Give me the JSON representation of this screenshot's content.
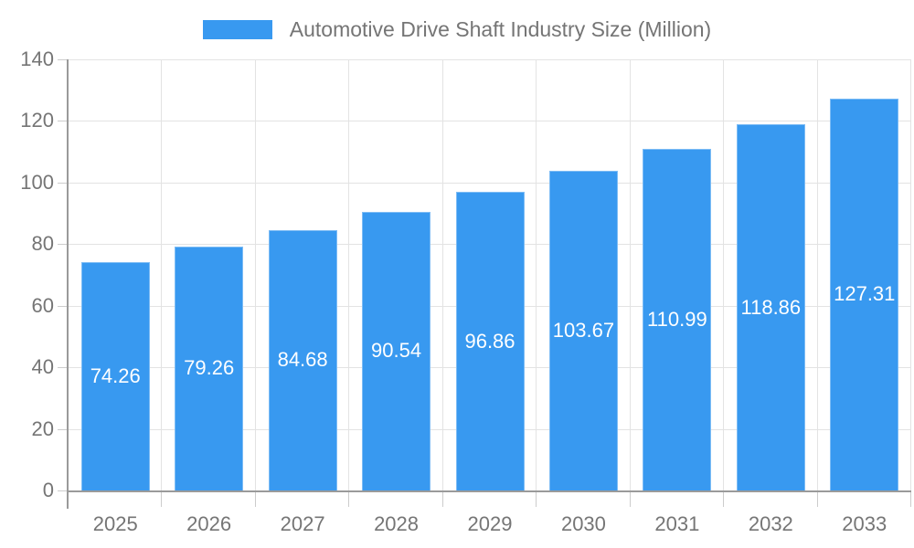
{
  "chart_data": {
    "type": "bar",
    "title": "Automotive Drive Shaft Industry Size (Million)",
    "categories": [
      "2025",
      "2026",
      "2027",
      "2028",
      "2029",
      "2030",
      "2031",
      "2032",
      "2033"
    ],
    "values": [
      74.26,
      79.26,
      84.68,
      90.54,
      96.86,
      103.67,
      110.99,
      118.86,
      127.31
    ],
    "bar_labels": [
      "74.26",
      "79.26",
      "84.68",
      "90.54",
      "96.86",
      "103.67",
      "110.99",
      "118.86",
      "127.31"
    ],
    "xlabel": "",
    "ylabel": "",
    "ylim": [
      0,
      140
    ],
    "ytick_step": 20,
    "yticks": [
      0,
      20,
      40,
      60,
      80,
      100,
      120,
      140
    ],
    "grid": true,
    "legend_position": "top",
    "legend_entries": [
      "Automotive Drive Shaft Industry Size (Million)"
    ]
  },
  "colors": {
    "bar": "#3899F0",
    "bar_label": "#FFFFFF",
    "text": "#757575",
    "grid": "#E3E3E3",
    "tick": "#CCCCCC",
    "axis": "#9A9A9A"
  }
}
